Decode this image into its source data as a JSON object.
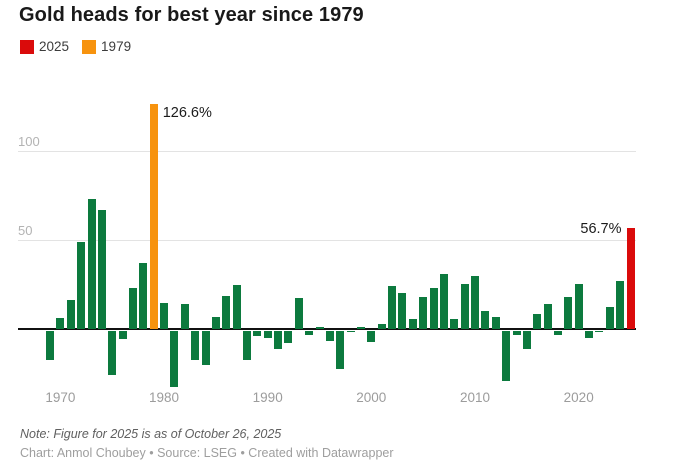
{
  "header": {
    "title": "Gold heads for best year since 1979"
  },
  "legend": {
    "items": [
      {
        "label": "2025",
        "color": "#da0b0b"
      },
      {
        "label": "1979",
        "color": "#f7930e"
      }
    ]
  },
  "chart_data": {
    "type": "bar",
    "title": "Gold heads for best year since 1979",
    "unit": "%",
    "years": [
      1969,
      1970,
      1971,
      1972,
      1973,
      1974,
      1975,
      1976,
      1977,
      1978,
      1979,
      1980,
      1981,
      1982,
      1983,
      1984,
      1985,
      1986,
      1987,
      1988,
      1989,
      1990,
      1991,
      1992,
      1993,
      1994,
      1995,
      1996,
      1997,
      1998,
      1999,
      2000,
      2001,
      2002,
      2003,
      2004,
      2005,
      2006,
      2007,
      2008,
      2009,
      2010,
      2011,
      2012,
      2013,
      2014,
      2015,
      2016,
      2017,
      2018,
      2019,
      2020,
      2021,
      2022,
      2023,
      2024,
      2025
    ],
    "values": [
      -16.1,
      6.2,
      16.3,
      48.9,
      73.1,
      66.9,
      -24.7,
      -4.3,
      23.0,
      37.1,
      126.6,
      14.6,
      -31.5,
      14.1,
      -16.3,
      -19.2,
      6.7,
      18.5,
      24.7,
      -16.3,
      -2.8,
      -3.9,
      -10.0,
      -6.7,
      17.3,
      -2.1,
      1.3,
      -5.6,
      -21.4,
      -0.8,
      0.9,
      -6.2,
      2.6,
      24.2,
      20.1,
      5.5,
      18.0,
      22.9,
      30.9,
      5.5,
      25.3,
      29.8,
      10.3,
      6.9,
      -28.3,
      -2.4,
      -10.3,
      8.4,
      14.1,
      -2.1,
      17.8,
      25.1,
      -3.9,
      -0.3,
      12.6,
      27.0,
      56.7
    ],
    "bar_colors": {
      "default": "#0c7a3e",
      "1979": "#f7930e",
      "2025": "#da0b0b"
    },
    "highlighted_years": [
      1979,
      2025
    ],
    "y_axis": {
      "ticks": [
        50,
        100
      ],
      "gridlines": true,
      "gridline_color": "#e3e3e3"
    },
    "x_axis": {
      "ticks": [
        1970,
        1980,
        1990,
        2000,
        2010,
        2020
      ]
    },
    "annotations": [
      {
        "year": 1979,
        "text": "126.6%",
        "side": "right"
      },
      {
        "year": 2025,
        "text": "56.7%",
        "side": "left"
      }
    ],
    "ylim": [
      -35,
      132
    ],
    "legend_position": "top-left"
  },
  "footer": {
    "note": "Note: Figure for 2025 is as of October 26, 2025",
    "credit": "Chart: Anmol Choubey • Source: LSEG • Created with Datawrapper"
  }
}
